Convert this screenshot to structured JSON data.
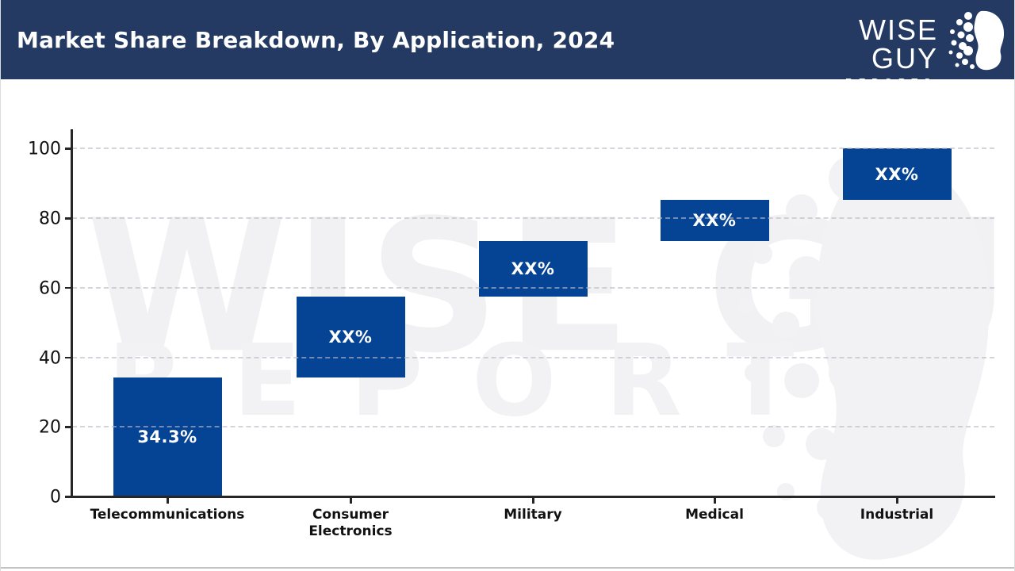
{
  "header": {
    "title": "Market Share Breakdown, By Application, 2024",
    "bg_color": "#243a63",
    "logo": {
      "line1": "WISE GUY",
      "line2": "REPORTS"
    }
  },
  "watermark": {
    "line1": "WISE GUY",
    "line2": "REPORTS"
  },
  "chart_data": {
    "type": "bar",
    "subtype": "waterfall-floating-bars",
    "title": "Market Share Breakdown, By Application, 2024",
    "categories": [
      "Telecommunications",
      "Consumer Electronics",
      "Military",
      "Medical",
      "Industrial"
    ],
    "category_lines": [
      [
        "Telecommunications"
      ],
      [
        "Consumer",
        "Electronics"
      ],
      [
        "Military"
      ],
      [
        "Medical"
      ],
      [
        "Industrial"
      ]
    ],
    "segments": [
      {
        "category": "Telecommunications",
        "start": 0,
        "end": 34.3,
        "label": "34.3%"
      },
      {
        "category": "Consumer Electronics",
        "start": 34.3,
        "end": 57.5,
        "label": "XX%"
      },
      {
        "category": "Military",
        "start": 57.5,
        "end": 73.3,
        "label": "XX%"
      },
      {
        "category": "Medical",
        "start": 73.3,
        "end": 85.2,
        "label": "XX%"
      },
      {
        "category": "Industrial",
        "start": 85.2,
        "end": 100,
        "label": "XX%"
      }
    ],
    "ylim": [
      0,
      100
    ],
    "yticks": [
      0,
      20,
      40,
      60,
      80,
      100
    ],
    "grid": {
      "axis": "y",
      "style": "dashed",
      "color": "#dcdcdc"
    },
    "legend": "none",
    "bar_color": "#054394",
    "bar_label_color": "#ffffff",
    "axis_color": "#262626",
    "tick_label_color": "#111111"
  }
}
